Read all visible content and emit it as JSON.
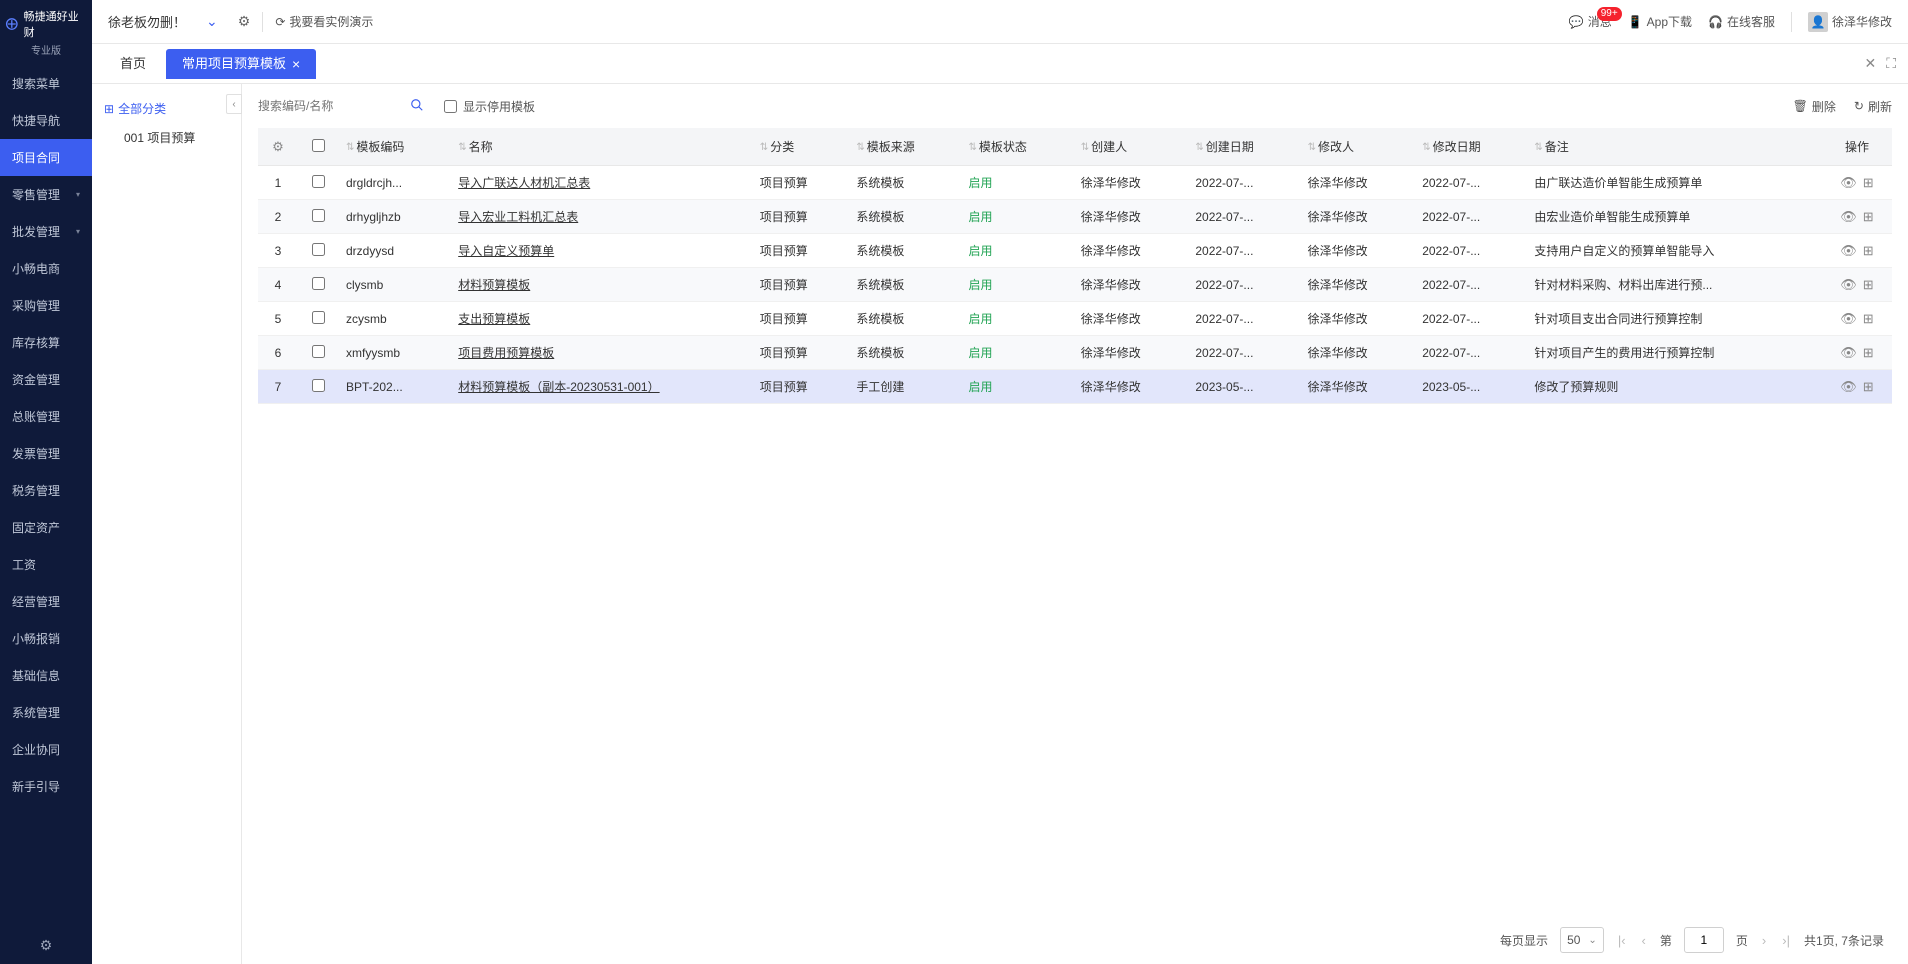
{
  "brand": {
    "name": "畅捷通好业财",
    "edition": "专业版"
  },
  "sidebar": {
    "items": [
      {
        "label": "搜索菜单",
        "expandable": false
      },
      {
        "label": "快捷导航",
        "expandable": false
      },
      {
        "label": "项目合同",
        "expandable": false,
        "active": true
      },
      {
        "label": "零售管理",
        "expandable": true
      },
      {
        "label": "批发管理",
        "expandable": true
      },
      {
        "label": "小畅电商",
        "expandable": false
      },
      {
        "label": "采购管理",
        "expandable": false
      },
      {
        "label": "库存核算",
        "expandable": false
      },
      {
        "label": "资金管理",
        "expandable": false
      },
      {
        "label": "总账管理",
        "expandable": false
      },
      {
        "label": "发票管理",
        "expandable": false
      },
      {
        "label": "税务管理",
        "expandable": false
      },
      {
        "label": "固定资产",
        "expandable": false
      },
      {
        "label": "工资",
        "expandable": false
      },
      {
        "label": "经营管理",
        "expandable": false
      },
      {
        "label": "小畅报销",
        "expandable": false
      },
      {
        "label": "基础信息",
        "expandable": false
      },
      {
        "label": "系统管理",
        "expandable": false
      },
      {
        "label": "企业协同",
        "expandable": false
      },
      {
        "label": "新手引导",
        "expandable": false
      }
    ]
  },
  "topbar": {
    "notice": "徐老板勿删！",
    "demo": "我要看实例演示",
    "message": "消息",
    "badge": "99+",
    "app": "App下载",
    "support": "在线客服",
    "user": "徐泽华修改"
  },
  "tabs": [
    {
      "label": "首页",
      "closable": false,
      "active": false
    },
    {
      "label": "常用项目预算模板",
      "closable": true,
      "active": true
    }
  ],
  "tree": {
    "root": "全部分类",
    "items": [
      {
        "label": "001 项目预算"
      }
    ]
  },
  "toolbar": {
    "search_placeholder": "搜索编码/名称",
    "show_disabled": "显示停用模板",
    "delete": "删除",
    "refresh": "刷新"
  },
  "table": {
    "columns": {
      "code": "模板编码",
      "name": "名称",
      "category": "分类",
      "source": "模板来源",
      "status": "模板状态",
      "creator": "创建人",
      "create_date": "创建日期",
      "modifier": "修改人",
      "modify_date": "修改日期",
      "remark": "备注",
      "action": "操作"
    },
    "rows": [
      {
        "idx": "1",
        "code": "drgldrcjh...",
        "name": "导入广联达人材机汇总表",
        "category": "项目预算",
        "source": "系统模板",
        "status": "启用",
        "creator": "徐泽华修改",
        "create_date": "2022-07-...",
        "modifier": "徐泽华修改",
        "modify_date": "2022-07-...",
        "remark": "由广联达造价单智能生成预算单"
      },
      {
        "idx": "2",
        "code": "drhygljhzb",
        "name": "导入宏业工料机汇总表",
        "category": "项目预算",
        "source": "系统模板",
        "status": "启用",
        "creator": "徐泽华修改",
        "create_date": "2022-07-...",
        "modifier": "徐泽华修改",
        "modify_date": "2022-07-...",
        "remark": "由宏业造价单智能生成预算单"
      },
      {
        "idx": "3",
        "code": "drzdyysd",
        "name": "导入自定义预算单",
        "category": "项目预算",
        "source": "系统模板",
        "status": "启用",
        "creator": "徐泽华修改",
        "create_date": "2022-07-...",
        "modifier": "徐泽华修改",
        "modify_date": "2022-07-...",
        "remark": "支持用户自定义的预算单智能导入"
      },
      {
        "idx": "4",
        "code": "clysmb",
        "name": "材料预算模板",
        "category": "项目预算",
        "source": "系统模板",
        "status": "启用",
        "creator": "徐泽华修改",
        "create_date": "2022-07-...",
        "modifier": "徐泽华修改",
        "modify_date": "2022-07-...",
        "remark": "针对材料采购、材料出库进行预..."
      },
      {
        "idx": "5",
        "code": "zcysmb",
        "name": "支出预算模板",
        "category": "项目预算",
        "source": "系统模板",
        "status": "启用",
        "creator": "徐泽华修改",
        "create_date": "2022-07-...",
        "modifier": "徐泽华修改",
        "modify_date": "2022-07-...",
        "remark": "针对项目支出合同进行预算控制"
      },
      {
        "idx": "6",
        "code": "xmfyysmb",
        "name": "项目费用预算模板",
        "category": "项目预算",
        "source": "系统模板",
        "status": "启用",
        "creator": "徐泽华修改",
        "create_date": "2022-07-...",
        "modifier": "徐泽华修改",
        "modify_date": "2022-07-...",
        "remark": "针对项目产生的费用进行预算控制"
      },
      {
        "idx": "7",
        "code": "BPT-202...",
        "name": "材料预算模板（副本-20230531-001）",
        "category": "项目预算",
        "source": "手工创建",
        "status": "启用",
        "creator": "徐泽华修改",
        "create_date": "2023-05-...",
        "modifier": "徐泽华修改",
        "modify_date": "2023-05-...",
        "remark": "修改了预算规则",
        "selected": true
      }
    ]
  },
  "pagination": {
    "per_page_label": "每页显示",
    "per_page": "50",
    "page_prefix": "第",
    "page": "1",
    "page_suffix": "页",
    "total": "共1页, 7条记录"
  },
  "colors": {
    "primary": "#3c5ef0",
    "sidebar_bg": "#0f1a3a",
    "success": "#23a455",
    "badge": "#f5222d"
  }
}
